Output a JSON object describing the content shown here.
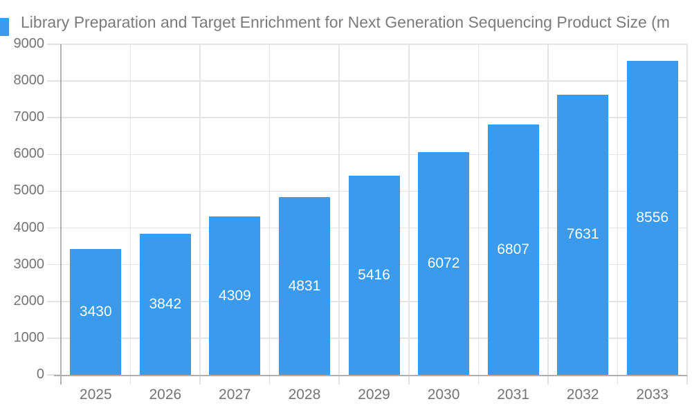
{
  "title": "Library Preparation and Target Enrichment for Next Generation Sequencing Product Size (m",
  "legend": {
    "swatch_color": "#399aee",
    "position": "top-left"
  },
  "colors": {
    "bar": "#399aee",
    "grid": "#e4e4e4",
    "axis": "#afafaf",
    "tick": "#e2e2e2",
    "axis_label": "#747474",
    "title": "#7b7b7b",
    "value_label": "#ffffff",
    "background": "#ffffff"
  },
  "chart_data": {
    "type": "bar",
    "title": "Library Preparation and Target Enrichment for Next Generation Sequencing Product Size (m",
    "categories": [
      "2025",
      "2026",
      "2027",
      "2028",
      "2029",
      "2030",
      "2031",
      "2032",
      "2033"
    ],
    "values": [
      3430,
      3842,
      4309,
      4831,
      5416,
      6072,
      6807,
      7631,
      8556
    ],
    "xlabel": "",
    "ylabel": "",
    "ylim": [
      0,
      9000
    ],
    "ytick_step": 1000,
    "ytick_labels": [
      "0",
      "1000",
      "2000",
      "3000",
      "4000",
      "5000",
      "6000",
      "7000",
      "8000",
      "9000"
    ],
    "grid": true,
    "value_labels": "inside-center-white",
    "legend_position": "top-left"
  }
}
